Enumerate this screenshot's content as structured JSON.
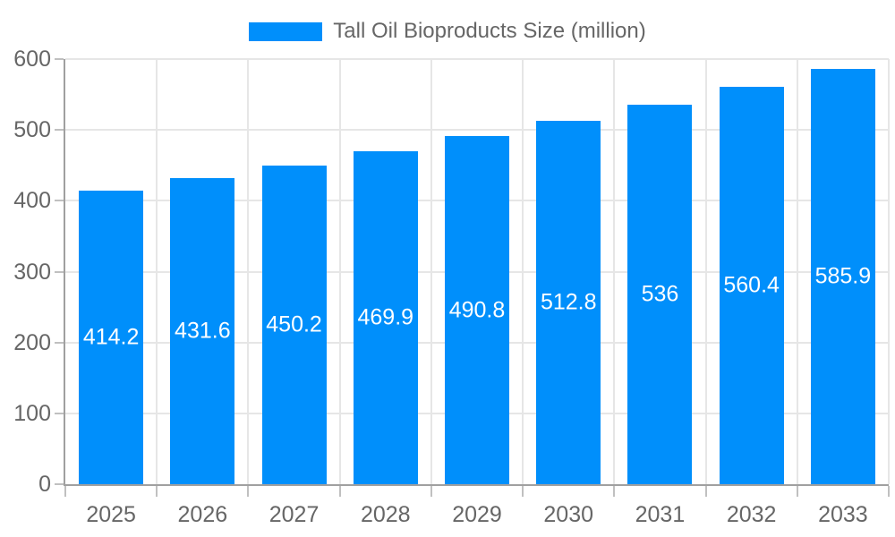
{
  "legend": {
    "series_label": "Tall Oil Bioproducts Size (million)"
  },
  "chart_data": {
    "type": "bar",
    "title": "Tall Oil Bioproducts Size (million)",
    "categories": [
      "2025",
      "2026",
      "2027",
      "2028",
      "2029",
      "2030",
      "2031",
      "2032",
      "2033"
    ],
    "values": [
      414.2,
      431.6,
      450.2,
      469.9,
      490.8,
      512.8,
      536,
      560.4,
      585.9
    ],
    "value_labels": [
      "414.2",
      "431.6",
      "450.2",
      "469.9",
      "490.8",
      "512.8",
      "536",
      "560.4",
      "585.9"
    ],
    "series": [
      {
        "name": "Tall Oil Bioproducts Size (million)",
        "values": [
          414.2,
          431.6,
          450.2,
          469.9,
          490.8,
          512.8,
          536,
          560.4,
          585.9
        ]
      }
    ],
    "xlabel": "",
    "ylabel": "",
    "ylim": [
      0,
      600
    ],
    "yticks": [
      0,
      100,
      200,
      300,
      400,
      500,
      600
    ],
    "grid": true,
    "legend_position": "top",
    "colors": {
      "bar": "#008ffb",
      "bar_label_text": "#ffffff",
      "axis_text": "#666666",
      "gridline": "#e6e6e6",
      "tick": "#c0c0c0",
      "axis_line": "#a0a0a0",
      "background": "#ffffff"
    }
  }
}
